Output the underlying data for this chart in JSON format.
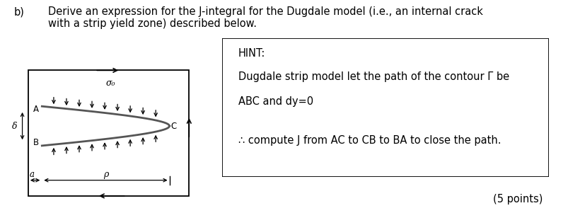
{
  "title_b": "b)",
  "title_text": "Derive an expression for the J-integral for the Dugdale model (i.e., an internal crack\nwith a strip yield zone) described below.",
  "hint_title": "HINT:",
  "hint_line1": "Dugdale strip model let the path of the contour Γ be",
  "hint_line2": "ABC and dy=0",
  "hint_line3": "∴ compute J from AC to CB to BA to close the path.",
  "points_text": "(5 points)",
  "bg_color": "#ffffff",
  "sigma0_label": "σ₀",
  "delta_label": "δ",
  "A_label": "A",
  "B_label": "B",
  "C_label": "C",
  "a_label": "a",
  "rho_label": "ρ"
}
